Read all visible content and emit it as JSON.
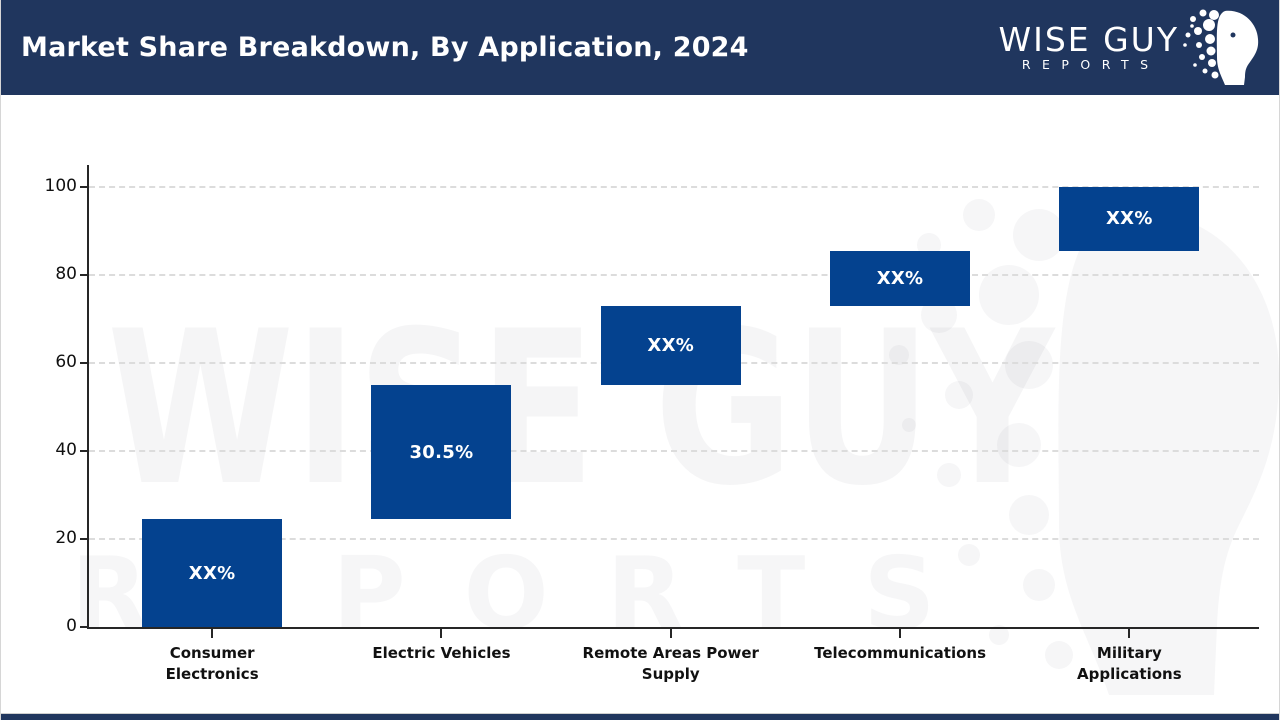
{
  "header": {
    "title": "Market Share Breakdown, By Application, 2024",
    "bg_color": "#20365e",
    "logo": {
      "line1": "WISE GUY",
      "line2": "REPORTS"
    }
  },
  "watermark": {
    "line1": "WISE GUY",
    "line2": "REPORTS"
  },
  "chart_data": {
    "type": "bar",
    "subtype": "floating-waterfall",
    "title": "Market Share Breakdown, By Application, 2024",
    "xlabel": "",
    "ylabel": "",
    "ylim": [
      0,
      100
    ],
    "yticks": [
      0,
      20,
      40,
      60,
      80,
      100
    ],
    "grid": "horizontal-dashed",
    "legend": "none",
    "bar_color": "#04428f",
    "bar_label_color": "#ffffff",
    "axis_color": "#262626",
    "grid_color": "#dcdcdc",
    "categories": [
      "Consumer\nElectronics",
      "Electric Vehicles",
      "Remote Areas Power\nSupply",
      "Telecommunications",
      "Military\nApplications"
    ],
    "bars": [
      {
        "category": "Consumer Electronics",
        "start": 0,
        "end": 24.5,
        "value": 24.5,
        "label": "XX%"
      },
      {
        "category": "Electric Vehicles",
        "start": 24.5,
        "end": 55,
        "value": 30.5,
        "label": "30.5%"
      },
      {
        "category": "Remote Areas Power Supply",
        "start": 55,
        "end": 73,
        "value": 18,
        "label": "XX%"
      },
      {
        "category": "Telecommunications",
        "start": 73,
        "end": 85.5,
        "value": 12.5,
        "label": "XX%"
      },
      {
        "category": "Military Applications",
        "start": 85.5,
        "end": 100,
        "value": 14.5,
        "label": "XX%"
      }
    ]
  }
}
